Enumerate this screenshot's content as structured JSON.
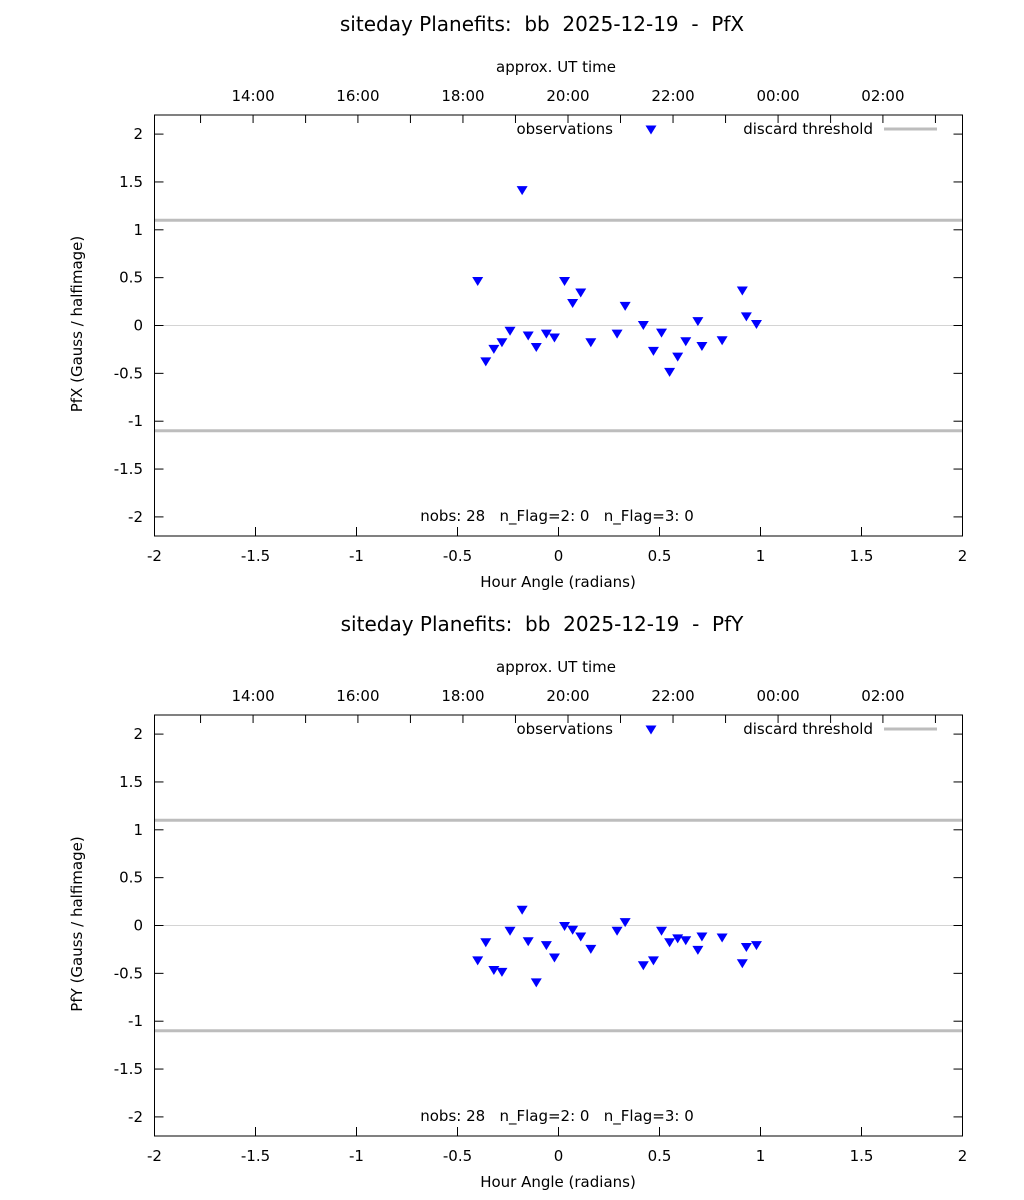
{
  "colors": {
    "marker": "#0000ff",
    "threshold_line": "#bdbdbd",
    "zero_line": "#d4d4d4",
    "border": "#000000",
    "text": "#000000",
    "background": "#ffffff"
  },
  "chart_data": [
    {
      "type": "scatter",
      "title": "siteday Planefits:  bb  2025-12-19  -  PfX",
      "top_axis_label": "approx. UT time",
      "xlabel": "Hour Angle (radians)",
      "ylabel": "PfX (Gauss / halfimage)",
      "annotation": "nobs: 28   n_Flag=2: 0   n_Flag=3: 0",
      "xlim": [
        -2,
        2
      ],
      "ylim": [
        -2.2,
        2.2
      ],
      "x_ticks": [
        "-2",
        "-1.5",
        "-1",
        "-0.5",
        "0",
        "0.5",
        "1",
        "1.5",
        "2"
      ],
      "y_ticks": [
        "2",
        "1.5",
        "1",
        "0.5",
        "0",
        "-0.5",
        "-1",
        "-1.5",
        "-2"
      ],
      "ut_ticks": {
        "labels": [
          "14:00",
          "16:00",
          "18:00",
          "20:00",
          "22:00",
          "00:00",
          "02:00"
        ],
        "x": [
          -1.512,
          -0.993,
          -0.473,
          0.047,
          0.567,
          1.087,
          1.606
        ],
        "minor_x": [
          -1.772,
          -1.252,
          -0.733,
          -0.213,
          0.307,
          0.827,
          1.347,
          1.866
        ]
      },
      "legend": [
        {
          "label": "observations",
          "sample": "point"
        },
        {
          "label": "discard threshold",
          "sample": "line"
        }
      ],
      "discard_threshold": 1.1,
      "zero_line": 0,
      "series": [
        {
          "name": "observations",
          "x": [
            -0.4,
            -0.36,
            -0.32,
            -0.28,
            -0.24,
            -0.18,
            -0.15,
            -0.11,
            -0.06,
            -0.02,
            0.03,
            0.07,
            0.11,
            0.16,
            0.29,
            0.33,
            0.42,
            0.47,
            0.51,
            0.55,
            0.59,
            0.63,
            0.69,
            0.71,
            0.81,
            0.91,
            0.93,
            0.98
          ],
          "y": [
            0.46,
            -0.38,
            -0.25,
            -0.18,
            -0.06,
            1.41,
            -0.11,
            -0.23,
            -0.09,
            -0.13,
            0.46,
            0.23,
            0.34,
            -0.18,
            -0.09,
            0.2,
            0.0,
            -0.27,
            -0.08,
            -0.49,
            -0.33,
            -0.17,
            0.04,
            -0.22,
            -0.16,
            0.36,
            0.09,
            0.01
          ]
        }
      ]
    },
    {
      "type": "scatter",
      "title": "siteday Planefits:  bb  2025-12-19  -  PfY",
      "top_axis_label": "approx. UT time",
      "xlabel": "Hour Angle (radians)",
      "ylabel": "PfY (Gauss / halfimage)",
      "annotation": "nobs: 28   n_Flag=2: 0   n_Flag=3: 0",
      "xlim": [
        -2,
        2
      ],
      "ylim": [
        -2.2,
        2.2
      ],
      "x_ticks": [
        "-2",
        "-1.5",
        "-1",
        "-0.5",
        "0",
        "0.5",
        "1",
        "1.5",
        "2"
      ],
      "y_ticks": [
        "2",
        "1.5",
        "1",
        "0.5",
        "0",
        "-0.5",
        "-1",
        "-1.5",
        "-2"
      ],
      "ut_ticks": {
        "labels": [
          "14:00",
          "16:00",
          "18:00",
          "20:00",
          "22:00",
          "00:00",
          "02:00"
        ],
        "x": [
          -1.512,
          -0.993,
          -0.473,
          0.047,
          0.567,
          1.087,
          1.606
        ],
        "minor_x": [
          -1.772,
          -1.252,
          -0.733,
          -0.213,
          0.307,
          0.827,
          1.347,
          1.866
        ]
      },
      "legend": [
        {
          "label": "observations",
          "sample": "point"
        },
        {
          "label": "discard threshold",
          "sample": "line"
        }
      ],
      "discard_threshold": 1.1,
      "zero_line": 0,
      "series": [
        {
          "name": "observations",
          "x": [
            -0.4,
            -0.36,
            -0.32,
            -0.28,
            -0.24,
            -0.18,
            -0.15,
            -0.11,
            -0.06,
            -0.02,
            0.03,
            0.07,
            0.11,
            0.16,
            0.29,
            0.33,
            0.42,
            0.47,
            0.51,
            0.55,
            0.59,
            0.63,
            0.69,
            0.71,
            0.81,
            0.91,
            0.93,
            0.98
          ],
          "y": [
            -0.37,
            -0.18,
            -0.47,
            -0.49,
            -0.06,
            0.16,
            -0.17,
            -0.6,
            -0.21,
            -0.34,
            -0.01,
            -0.05,
            -0.12,
            -0.25,
            -0.06,
            0.03,
            -0.42,
            -0.37,
            -0.06,
            -0.18,
            -0.14,
            -0.16,
            -0.26,
            -0.12,
            -0.13,
            -0.4,
            -0.23,
            -0.21
          ]
        }
      ]
    }
  ]
}
